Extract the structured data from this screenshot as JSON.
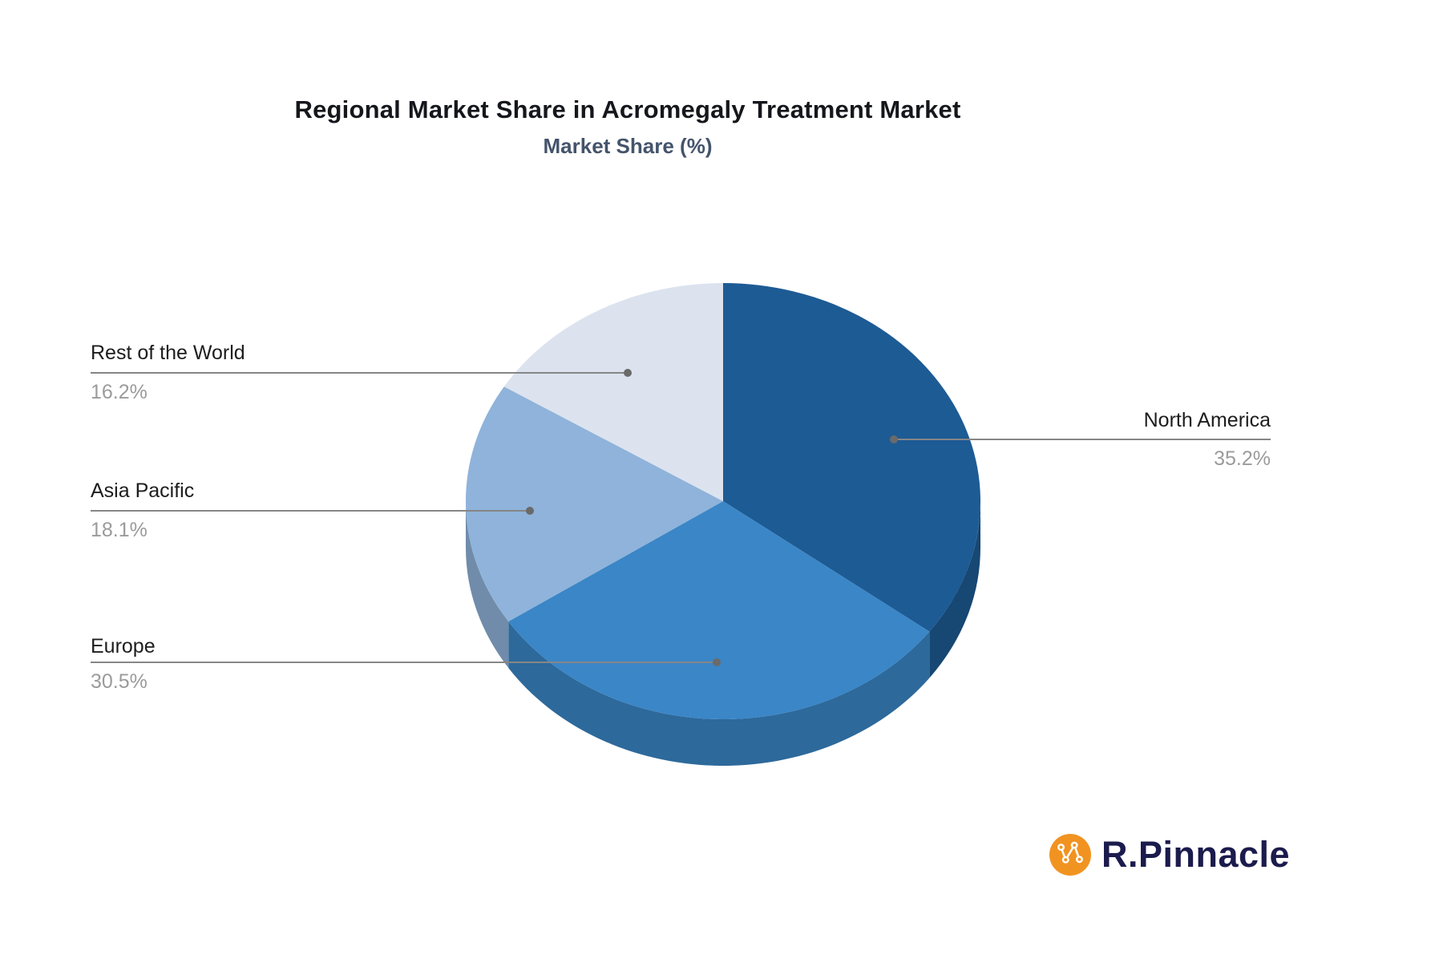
{
  "title": "Regional Market Share in Acromegaly Treatment Market",
  "subtitle": "Market Share (%)",
  "chart_data": {
    "type": "pie",
    "style": "3d",
    "title": "Regional Market Share in Acromegaly Treatment Market",
    "subtitle": "Market Share (%)",
    "unit": "%",
    "start_angle_deg": 0,
    "direction": "clockwise",
    "legend": "none",
    "slices": [
      {
        "label": "North America",
        "value": 35.2,
        "color": "#1D5B94"
      },
      {
        "label": "Europe",
        "value": 30.5,
        "color": "#3A86C7"
      },
      {
        "label": "Asia Pacific",
        "value": 18.1,
        "color": "#8FB3DA"
      },
      {
        "label": "Rest of the World",
        "value": 16.2,
        "color": "#DCE3EF"
      }
    ]
  },
  "callouts": {
    "north_america": {
      "label": "North America",
      "pct": "35.2%"
    },
    "europe": {
      "label": "Europe",
      "pct": "30.5%"
    },
    "asia_pacific": {
      "label": "Asia Pacific",
      "pct": "18.1%"
    },
    "rest_of_world": {
      "label": "Rest of the World",
      "pct": "16.2%"
    }
  },
  "palette": {
    "leader_line": "#868686",
    "leader_dot": "#6a6a6a",
    "label_text": "#1d1d1d",
    "pct_text": "#9b9b9b",
    "title_text": "#15171c",
    "subtitle_text": "#44546b"
  },
  "logo": {
    "brand": "R.Pinnacle",
    "icon": "network-nodes-icon",
    "circle_color": "#F19321",
    "text_color": "#1B1B4D"
  }
}
